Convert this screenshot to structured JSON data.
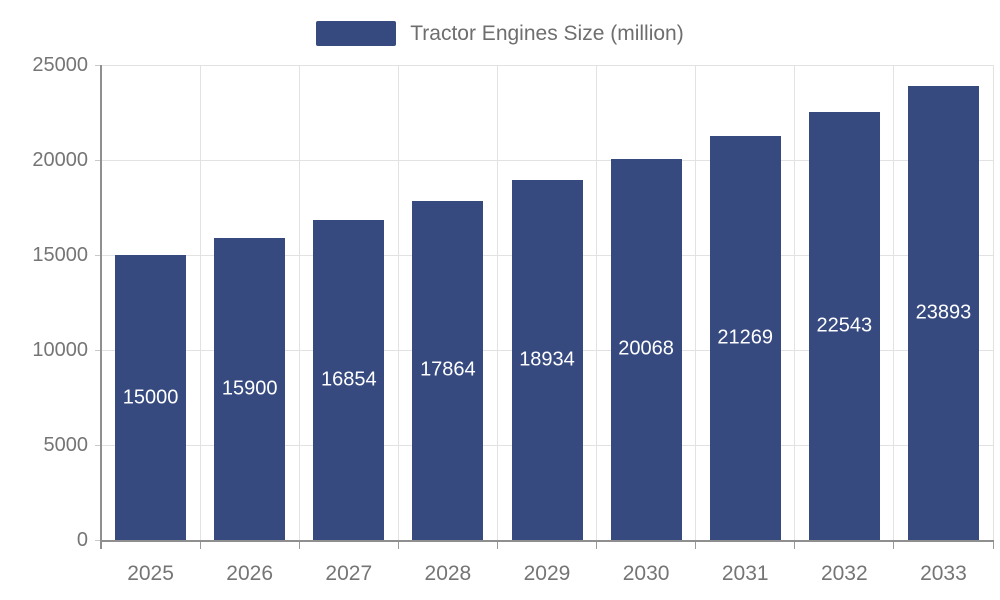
{
  "chart_data": {
    "type": "bar",
    "title": "Tractor Engines Size (million)",
    "categories": [
      "2025",
      "2026",
      "2027",
      "2028",
      "2029",
      "2030",
      "2031",
      "2032",
      "2033"
    ],
    "values": [
      15000,
      15900,
      16854,
      17864,
      18934,
      20068,
      21269,
      22543,
      23893
    ],
    "xlabel": "",
    "ylabel": "",
    "ylim": [
      0,
      25000
    ],
    "yticks": [
      0,
      5000,
      10000,
      15000,
      20000,
      25000
    ],
    "grid": true,
    "legend_position": "top-center",
    "colors": {
      "bar": "#364a80",
      "bar_label": "#ffffff",
      "axis_line": "#8f8f8f",
      "gridline": "#e2e2e2",
      "tick_label": "#757575",
      "legend_text": "#6e6e6e"
    }
  }
}
